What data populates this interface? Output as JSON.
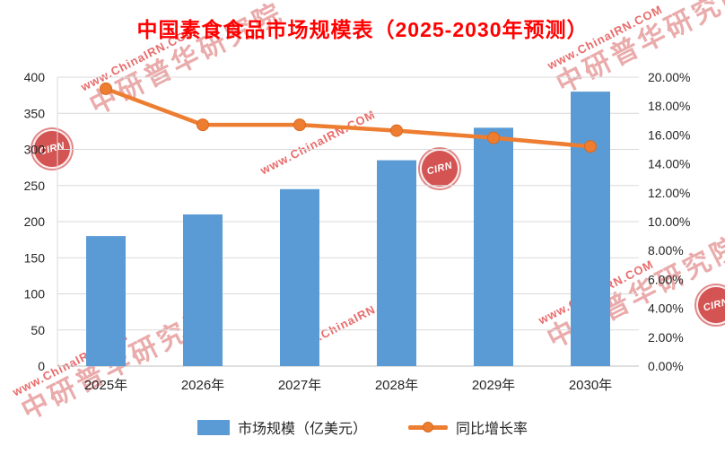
{
  "title": "中国素食食品市场规模表（2025-2030年预测）",
  "chart_data": {
    "type": "bar",
    "subtype": "bar-line-combo",
    "categories": [
      "2025年",
      "2026年",
      "2027年",
      "2028年",
      "2029年",
      "2030年"
    ],
    "series": [
      {
        "name": "市场规模（亿美元）",
        "type": "bar",
        "axis": "left",
        "values": [
          180,
          210,
          245,
          285,
          330,
          380
        ],
        "color": "#5B9BD5"
      },
      {
        "name": "同比增长率",
        "type": "line",
        "axis": "right",
        "values": [
          19.2,
          16.7,
          16.7,
          16.3,
          15.8,
          15.2
        ],
        "color": "#ED7D31"
      }
    ],
    "left_axis": {
      "min": 0,
      "max": 400,
      "step": 50
    },
    "right_axis": {
      "min": 0,
      "max": 20,
      "step": 2,
      "format": "percent2"
    },
    "grid": true,
    "legend_position": "bottom",
    "title": "中国素食食品市场规模表（2025-2030年预测）"
  },
  "watermark": {
    "url": "www.ChinaIRN.COM",
    "brand": "中研普华研究院",
    "logo": "CIRN"
  },
  "colors": {
    "title": "#FF0000",
    "bar": "#5B9BD5",
    "line": "#ED7D31",
    "grid": "#D9D9D9",
    "axis_line": "#BFBFBF",
    "tick_text": "#262626"
  }
}
